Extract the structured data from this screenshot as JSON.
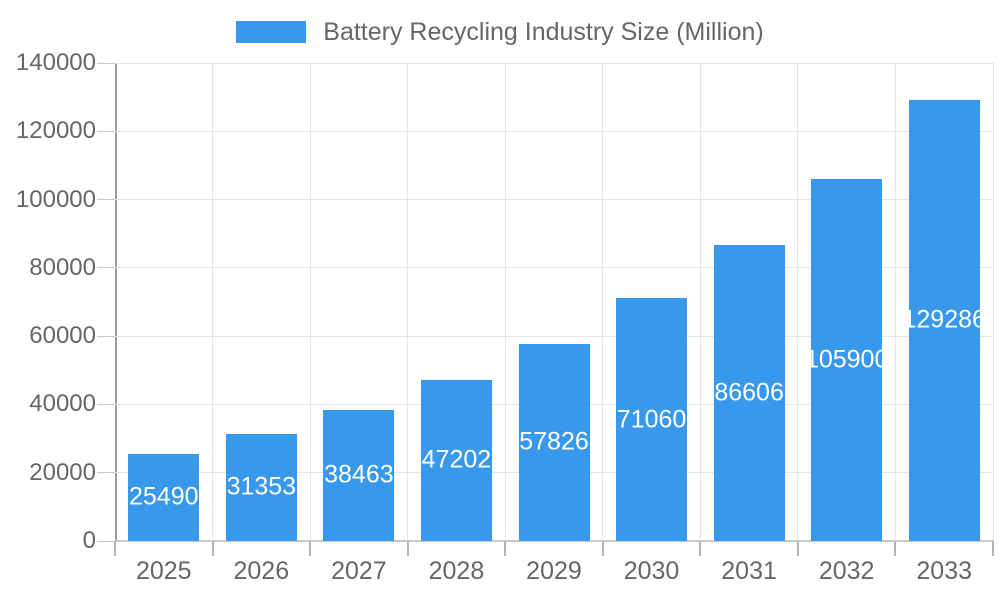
{
  "legend": {
    "label": "Battery Recycling Industry Size (Million)"
  },
  "chart_data": {
    "type": "bar",
    "title": "Battery Recycling Industry Size (Million)",
    "categories": [
      "2025",
      "2026",
      "2027",
      "2028",
      "2029",
      "2030",
      "2031",
      "2032",
      "2033"
    ],
    "values": [
      25490,
      31353,
      38463,
      47202,
      57826,
      71060,
      86606,
      105900,
      129286
    ],
    "xlabel": "",
    "ylabel": "",
    "ylim": [
      0,
      140000
    ],
    "yticks": [
      0,
      20000,
      40000,
      60000,
      80000,
      100000,
      120000,
      140000
    ],
    "grid": true,
    "legend_position": "top-center",
    "data_labels": "inside-center",
    "colors": {
      "bar": "#3898EC",
      "data_label": "#FFFFFF",
      "axis_text": "#666666",
      "gridline": "#E6E6E6",
      "y_axis_line": "#9E9E9E",
      "x_axis_line": "#C8C8C8",
      "tick": "#B3B3B3",
      "background": "#FFFFFF"
    }
  }
}
